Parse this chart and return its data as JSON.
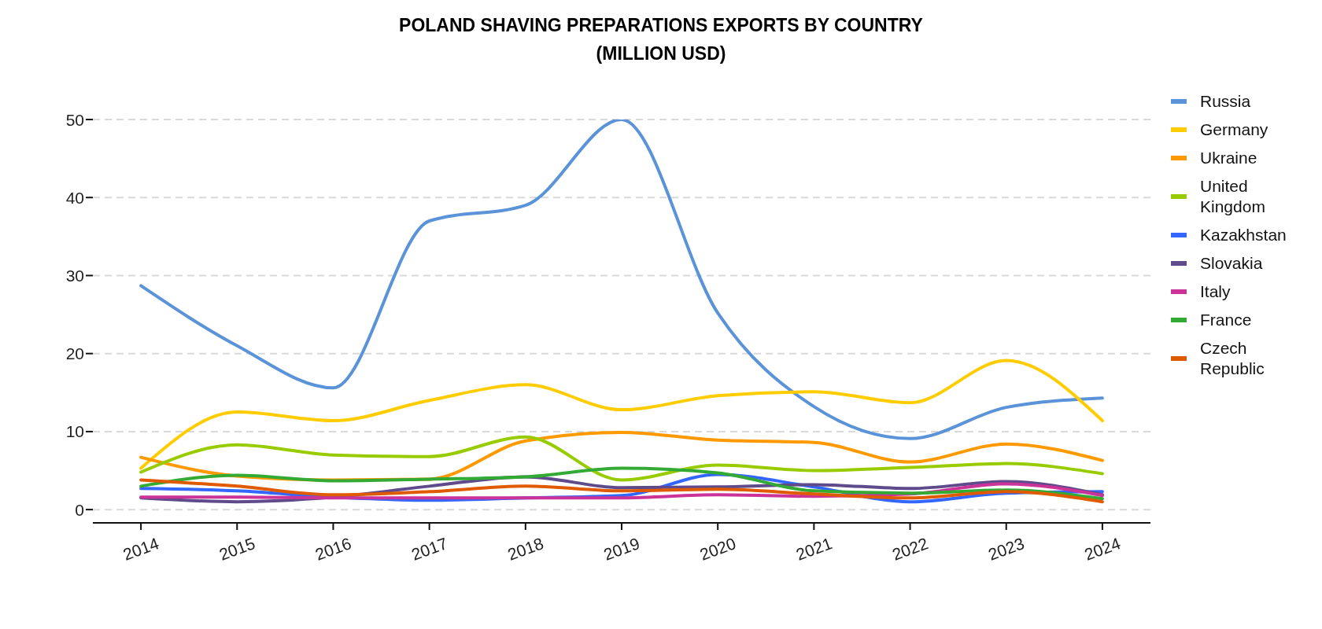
{
  "chart_data": {
    "type": "line",
    "title": "POLAND SHAVING PREPARATIONS EXPORTS BY COUNTRY",
    "subtitle": "(MILLION USD)",
    "x": [
      2014,
      2015,
      2016,
      2017,
      2018,
      2019,
      2020,
      2021,
      2022,
      2023,
      2024
    ],
    "xlim": [
      2013.5,
      2024.5
    ],
    "xticks": [
      2014,
      2015,
      2016,
      2017,
      2018,
      2019,
      2020,
      2021,
      2022,
      2023,
      2024
    ],
    "ylim": [
      -1.7,
      50
    ],
    "yticks": [
      0,
      10,
      20,
      30,
      40,
      50
    ],
    "grid": "y",
    "legend": "right",
    "line_style": "solid",
    "series": [
      {
        "name": "Russia",
        "color": "#5a93d8",
        "values": [
          28.7,
          21.0,
          15.6,
          37.0,
          39.0,
          50.0,
          25.2,
          13.2,
          9.1,
          13.1,
          14.3
        ]
      },
      {
        "name": "Germany",
        "color": "#ffcc00",
        "values": [
          5.3,
          12.5,
          11.4,
          14.0,
          16.0,
          12.8,
          14.6,
          15.1,
          13.7,
          19.1,
          11.4
        ]
      },
      {
        "name": "Ukraine",
        "color": "#ff9900",
        "values": [
          6.7,
          4.3,
          3.8,
          3.9,
          8.8,
          9.9,
          8.9,
          8.6,
          6.1,
          8.4,
          6.3
        ]
      },
      {
        "name": "United Kingdom",
        "color": "#99cc00",
        "values": [
          4.8,
          8.3,
          7.0,
          6.8,
          9.3,
          3.8,
          5.7,
          5.0,
          5.4,
          5.9,
          4.6
        ]
      },
      {
        "name": "Kazakhstan",
        "color": "#3366ff",
        "values": [
          2.7,
          2.4,
          1.6,
          1.2,
          1.5,
          1.8,
          4.5,
          2.9,
          1.0,
          2.1,
          2.3
        ]
      },
      {
        "name": "Slovakia",
        "color": "#5f4b8b",
        "values": [
          1.5,
          1.0,
          1.6,
          3.0,
          4.2,
          2.8,
          2.9,
          3.2,
          2.7,
          3.6,
          1.9
        ]
      },
      {
        "name": "Italy",
        "color": "#cc3399",
        "values": [
          1.6,
          1.6,
          1.5,
          1.5,
          1.5,
          1.5,
          1.9,
          1.7,
          2.0,
          3.3,
          1.8
        ]
      },
      {
        "name": "France",
        "color": "#33aa33",
        "values": [
          3.0,
          4.4,
          3.7,
          3.9,
          4.2,
          5.3,
          4.7,
          2.4,
          2.1,
          2.5,
          1.4
        ]
      },
      {
        "name": "Czech Republic",
        "color": "#e05a00",
        "values": [
          3.8,
          3.0,
          1.9,
          2.3,
          3.0,
          2.4,
          2.6,
          2.0,
          1.5,
          2.3,
          1.0
        ]
      }
    ]
  }
}
